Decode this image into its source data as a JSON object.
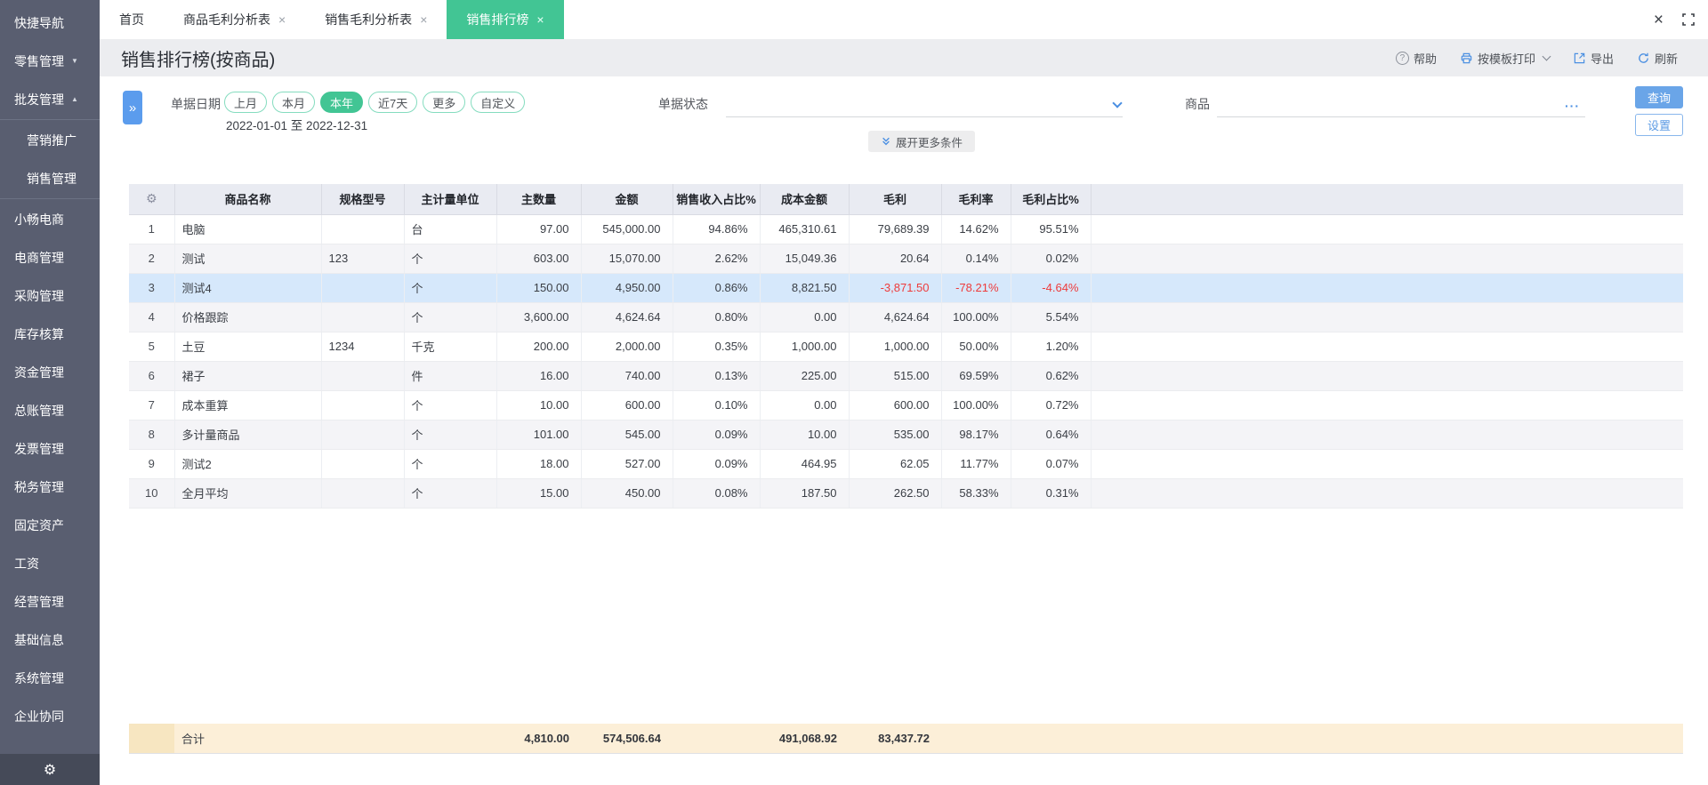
{
  "colors": {
    "sidebar_bg": "#595e70",
    "accent_green": "#42c594",
    "accent_blue": "#4a8fe2",
    "negative_red": "#ee3b3b",
    "selected_row": "#d6e8fb",
    "total_row_bg": "#fcefd8",
    "table_header_bg": "#e9ebf2"
  },
  "icons": {
    "gear": "⚙",
    "collapse": "»",
    "help": "?",
    "close": "×",
    "more": "···",
    "arrow_up": "▲",
    "arrow_down": "▼"
  },
  "sidebar": {
    "items": [
      {
        "label": "快捷导航"
      },
      {
        "label": "零售管理",
        "arrow": "down"
      },
      {
        "label": "批发管理",
        "arrow": "up"
      },
      {
        "label": "营销推广",
        "sub": true,
        "sep_before": true
      },
      {
        "label": "销售管理",
        "sub": true,
        "sep_after": true
      },
      {
        "label": "小畅电商"
      },
      {
        "label": "电商管理"
      },
      {
        "label": "采购管理"
      },
      {
        "label": "库存核算"
      },
      {
        "label": "资金管理"
      },
      {
        "label": "总账管理"
      },
      {
        "label": "发票管理"
      },
      {
        "label": "税务管理"
      },
      {
        "label": "固定资产"
      },
      {
        "label": "工资"
      },
      {
        "label": "经营管理"
      },
      {
        "label": "基础信息"
      },
      {
        "label": "系统管理"
      },
      {
        "label": "企业协同"
      }
    ]
  },
  "tabs": {
    "close_glyph": "×",
    "items": [
      {
        "label": "首页",
        "closable": false
      },
      {
        "label": "商品毛利分析表",
        "closable": true
      },
      {
        "label": "销售毛利分析表",
        "closable": true
      },
      {
        "label": "销售排行榜",
        "closable": true,
        "active": true
      }
    ]
  },
  "window": {
    "close_glyph": "×"
  },
  "page": {
    "title": "销售排行榜(按商品)"
  },
  "toolbar": {
    "help": "帮助",
    "print": "按模板打印",
    "export": "导出",
    "refresh": "刷新"
  },
  "filters": {
    "date": {
      "label": "单据日期",
      "presets": [
        {
          "label": "上月"
        },
        {
          "label": "本月"
        },
        {
          "label": "本年",
          "selected": true
        },
        {
          "label": "近7天"
        },
        {
          "label": "更多"
        },
        {
          "label": "自定义"
        }
      ],
      "range": "2022-01-01 至 2022-12-31"
    },
    "status": {
      "label": "单据状态",
      "value": ""
    },
    "product": {
      "label": "商品",
      "value": ""
    },
    "expand_label": "展开更多条件",
    "query_label": "查询",
    "settings_label": "设置"
  },
  "table": {
    "columns": [
      "商品名称",
      "规格型号",
      "主计量单位",
      "主数量",
      "金额",
      "销售收入占比%",
      "成本金额",
      "毛利",
      "毛利率",
      "毛利占比%"
    ],
    "rows": [
      {
        "num": "1",
        "name": "电脑",
        "spec": "",
        "unit": "台",
        "qty": "97.00",
        "amount": "545,000.00",
        "revenue_pct": "94.86%",
        "cost": "465,310.61",
        "profit": "79,689.39",
        "margin": "14.62%",
        "profit_pct": "95.51%"
      },
      {
        "num": "2",
        "name": "测试",
        "spec": "123",
        "unit": "个",
        "qty": "603.00",
        "amount": "15,070.00",
        "revenue_pct": "2.62%",
        "cost": "15,049.36",
        "profit": "20.64",
        "margin": "0.14%",
        "profit_pct": "0.02%"
      },
      {
        "num": "3",
        "name": "测试4",
        "spec": "",
        "unit": "个",
        "qty": "150.00",
        "amount": "4,950.00",
        "revenue_pct": "0.86%",
        "cost": "8,821.50",
        "profit": "-3,871.50",
        "margin": "-78.21%",
        "profit_pct": "-4.64%",
        "selected": true
      },
      {
        "num": "4",
        "name": "价格跟踪",
        "spec": "",
        "unit": "个",
        "qty": "3,600.00",
        "amount": "4,624.64",
        "revenue_pct": "0.80%",
        "cost": "0.00",
        "profit": "4,624.64",
        "margin": "100.00%",
        "profit_pct": "5.54%"
      },
      {
        "num": "5",
        "name": "土豆",
        "spec": "1234",
        "unit": "千克",
        "qty": "200.00",
        "amount": "2,000.00",
        "revenue_pct": "0.35%",
        "cost": "1,000.00",
        "profit": "1,000.00",
        "margin": "50.00%",
        "profit_pct": "1.20%"
      },
      {
        "num": "6",
        "name": "裙子",
        "spec": "",
        "unit": "件",
        "qty": "16.00",
        "amount": "740.00",
        "revenue_pct": "0.13%",
        "cost": "225.00",
        "profit": "515.00",
        "margin": "69.59%",
        "profit_pct": "0.62%"
      },
      {
        "num": "7",
        "name": "成本重算",
        "spec": "",
        "unit": "个",
        "qty": "10.00",
        "amount": "600.00",
        "revenue_pct": "0.10%",
        "cost": "0.00",
        "profit": "600.00",
        "margin": "100.00%",
        "profit_pct": "0.72%"
      },
      {
        "num": "8",
        "name": "多计量商品",
        "spec": "",
        "unit": "个",
        "qty": "101.00",
        "amount": "545.00",
        "revenue_pct": "0.09%",
        "cost": "10.00",
        "profit": "535.00",
        "margin": "98.17%",
        "profit_pct": "0.64%"
      },
      {
        "num": "9",
        "name": "测试2",
        "spec": "",
        "unit": "个",
        "qty": "18.00",
        "amount": "527.00",
        "revenue_pct": "0.09%",
        "cost": "464.95",
        "profit": "62.05",
        "margin": "11.77%",
        "profit_pct": "0.07%"
      },
      {
        "num": "10",
        "name": "全月平均",
        "spec": "",
        "unit": "个",
        "qty": "15.00",
        "amount": "450.00",
        "revenue_pct": "0.08%",
        "cost": "187.50",
        "profit": "262.50",
        "margin": "58.33%",
        "profit_pct": "0.31%"
      }
    ],
    "footer": {
      "label": "合计",
      "qty": "4,810.00",
      "amount": "574,506.64",
      "cost": "491,068.92",
      "profit": "83,437.72"
    }
  }
}
